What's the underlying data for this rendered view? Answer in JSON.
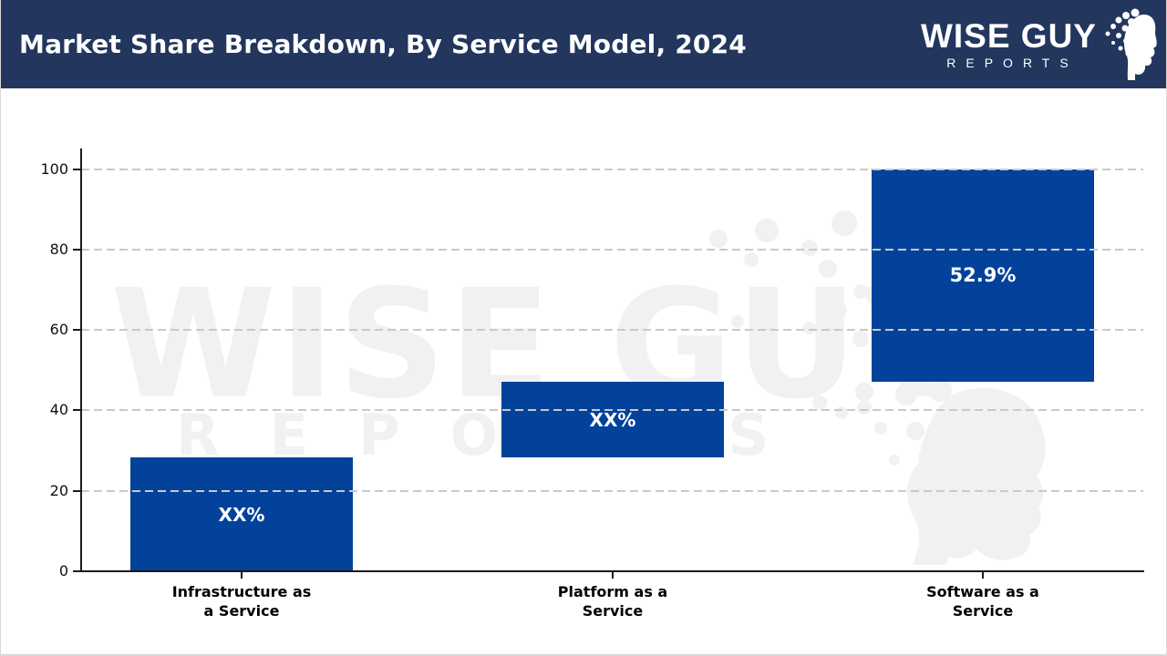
{
  "header": {
    "title": "Market Share Breakdown, By Service Model, 2024",
    "logo": {
      "primary": "WISE GUY",
      "secondary": "REPORTS"
    }
  },
  "watermark": {
    "primary": "WISE GUY",
    "secondary": "REPORTS"
  },
  "chart_data": {
    "type": "bar",
    "variant": "waterfall",
    "title": "Market Share Breakdown, By Service Model, 2024",
    "xlabel": "",
    "ylabel": "",
    "ylim": [
      0,
      105
    ],
    "yticks": [
      0,
      20,
      40,
      60,
      80,
      100
    ],
    "grid": "horizontal-dashed",
    "legend": "none",
    "bar_color": "#03429b",
    "categories": [
      [
        "Infrastructure as",
        "a Service"
      ],
      [
        "Platform as a",
        "Service"
      ],
      [
        "Software as a",
        "Service"
      ]
    ],
    "segments": [
      {
        "category": "Infrastructure as a Service",
        "start": 0,
        "end": 28.2,
        "value": 28.2,
        "label": "XX%"
      },
      {
        "category": "Platform as a Service",
        "start": 28.2,
        "end": 47.1,
        "value": 18.9,
        "label": "XX%"
      },
      {
        "category": "Software as a Service",
        "start": 47.1,
        "end": 100,
        "value": 52.9,
        "label": "52.9%"
      }
    ]
  },
  "colors": {
    "header_bg": "#22365e",
    "bar": "#03429b",
    "grid": "#c9c9c9",
    "axis": "#1a1a1a",
    "watermark": "#f1f1f4",
    "page_border": "#d9d9d9"
  }
}
